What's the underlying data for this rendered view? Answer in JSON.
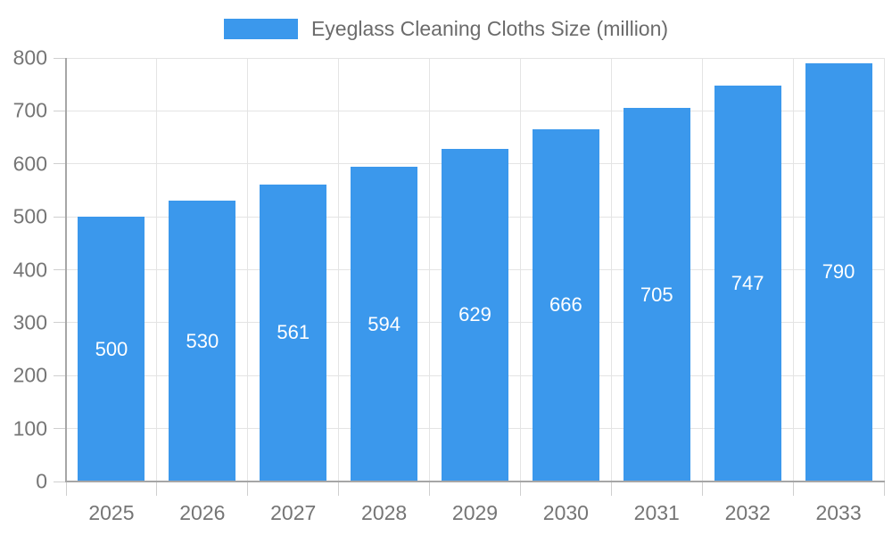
{
  "legend": {
    "label": "Eyeglass Cleaning Cloths Size (million)"
  },
  "chart_data": {
    "type": "bar",
    "title": "Eyeglass Cleaning Cloths Size (million)",
    "categories": [
      "2025",
      "2026",
      "2027",
      "2028",
      "2029",
      "2030",
      "2031",
      "2032",
      "2033"
    ],
    "values": [
      500,
      530,
      561,
      594,
      629,
      666,
      705,
      747,
      790
    ],
    "xlabel": "",
    "ylabel": "",
    "ylim": [
      0,
      800
    ],
    "ytick_step": 100,
    "grid": true,
    "legend_position": "top-center",
    "bar_color": "#3b98ec",
    "value_label_color": "#ffffff",
    "axis_color": "#a6a6a6",
    "grid_color": "#e4e4e4",
    "tick_label_color": "#757575",
    "legend_text_color": "#6b6b6b"
  }
}
